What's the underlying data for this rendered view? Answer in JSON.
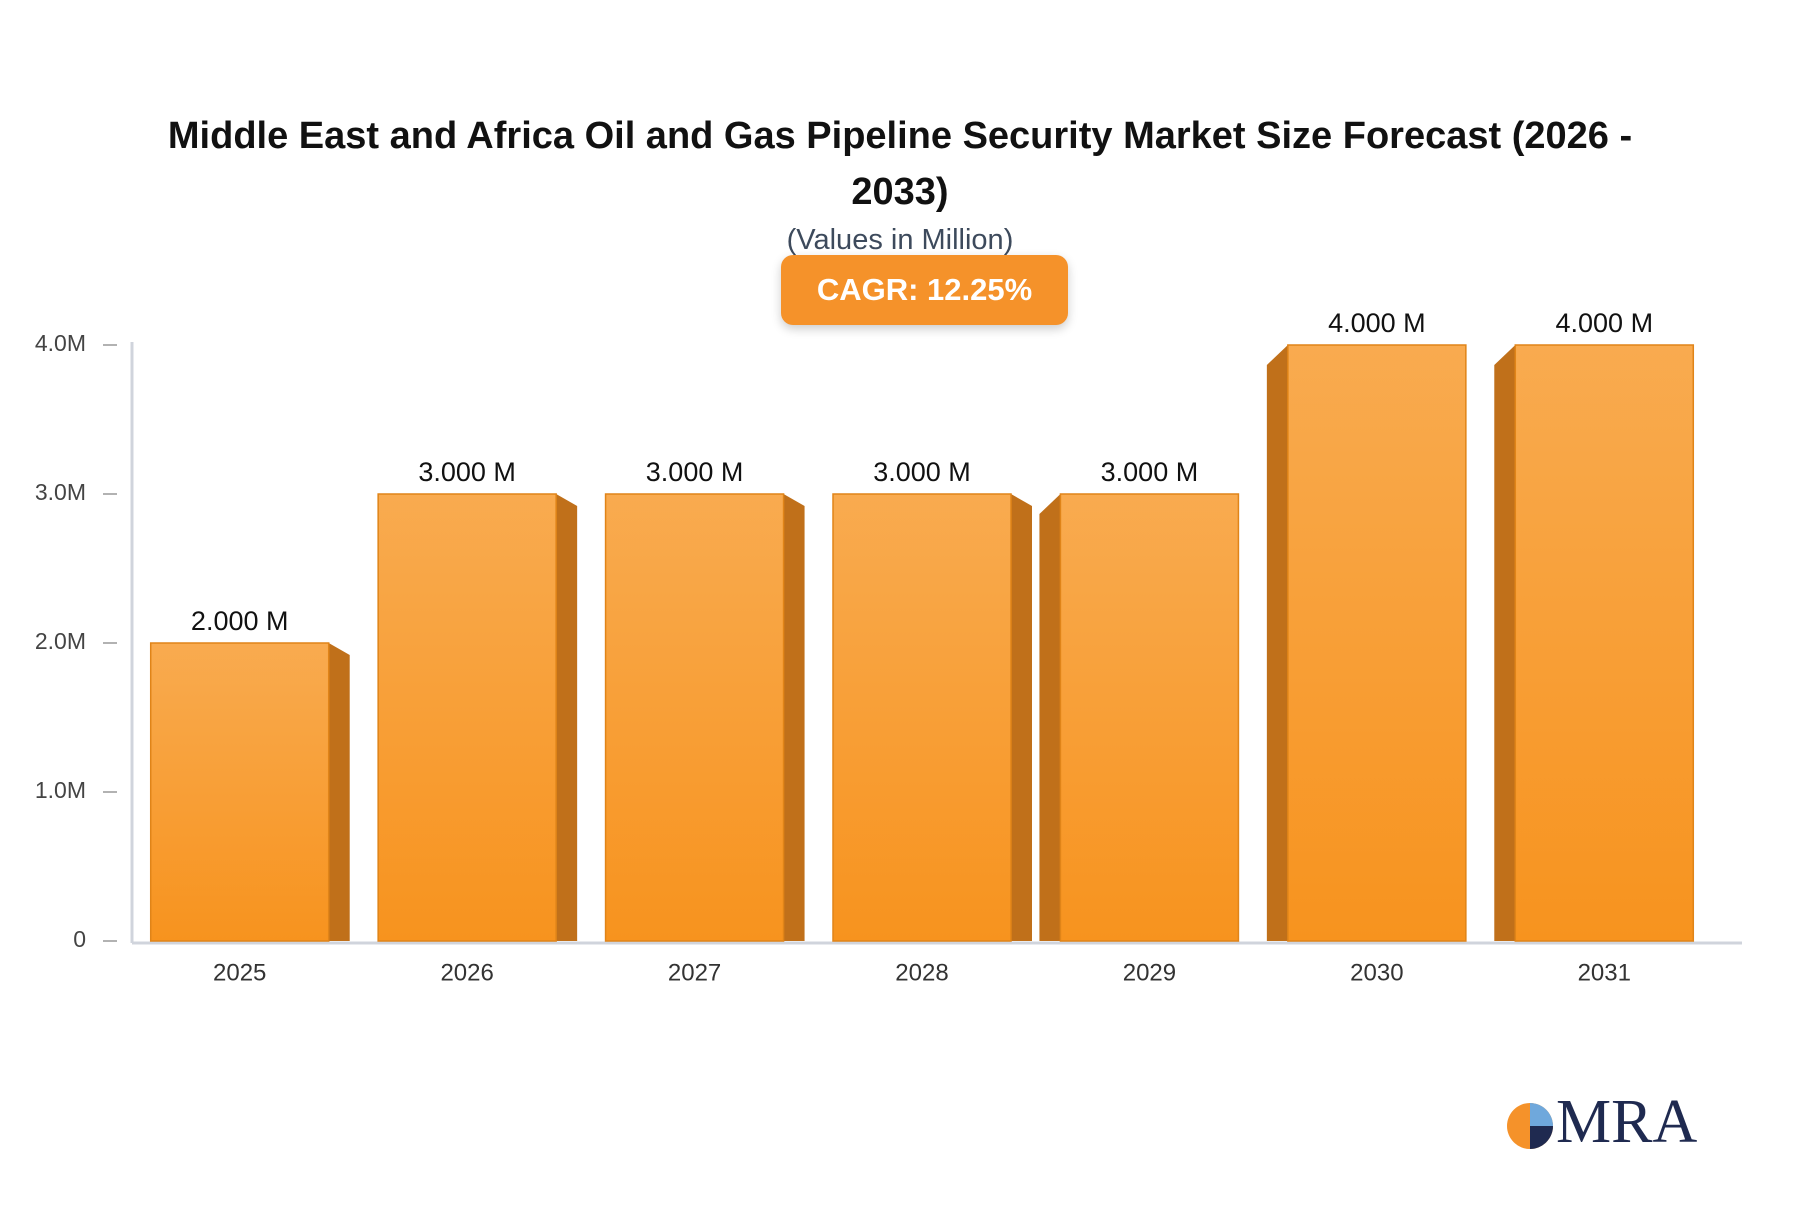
{
  "chart_data": {
    "type": "bar3d",
    "title": "Middle East and Africa Oil and Gas Pipeline Security Market Size Forecast (2026 - 2033)",
    "subtitle": "(Values in Million)",
    "annotation": "CAGR: 12.25%",
    "categories": [
      "2025",
      "2026",
      "2027",
      "2028",
      "2029",
      "2030",
      "2031"
    ],
    "values": [
      2,
      3,
      3,
      3,
      3,
      4,
      4
    ],
    "value_labels": [
      "2.000 M",
      "3.000 M",
      "3.000 M",
      "3.000 M",
      "3.000 M",
      "4.000 M",
      "4.000 M"
    ],
    "color": "#f7931e",
    "side_color": "#c0701a",
    "ylim": [
      0,
      4
    ],
    "yticks": [
      0,
      {
        "value": 1,
        "label": "1.0M"
      },
      {
        "value": 2,
        "label": "2.0M"
      },
      {
        "value": 3,
        "label": "3.0M"
      },
      {
        "value": 4,
        "label": "4.0M"
      }
    ]
  },
  "logo": "MRA"
}
